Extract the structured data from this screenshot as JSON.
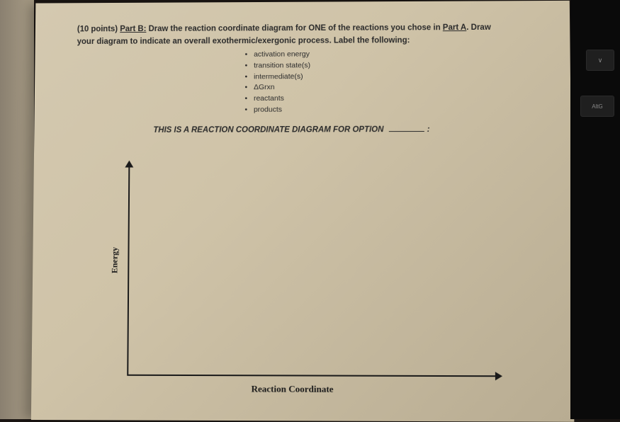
{
  "instruction": {
    "points_prefix": "(10 points) ",
    "part_label": "Part B:",
    "line1_rest": " Draw the reaction coordinate diagram for ONE of the reactions you chose in ",
    "part_a_ref": "Part A",
    "line1_end": ". Draw",
    "line2_start": "your diagram to indicate an ",
    "emphasis": "overall exothermic/exergonic process.",
    "line2_end": " Label the following:"
  },
  "bullets": [
    "activation energy",
    "transition state(s)",
    "intermediate(s)",
    "ΔGrxn",
    "reactants",
    "products"
  ],
  "diagram_title_prefix": "THIS IS A REACTION COORDINATE DIAGRAM FOR OPTION ",
  "diagram_title_suffix": ":",
  "chart": {
    "y_label": "Energy",
    "x_label": "Reaction Coordinate",
    "axis_color": "#1a1a1a",
    "background": "transparent"
  },
  "keyboard": {
    "key1": "∨",
    "key2": "AltG"
  },
  "colors": {
    "paper_light": "#d4c9b0",
    "paper_dark": "#b8ac92",
    "text": "#2a2a2a",
    "background": "#1a1512"
  }
}
